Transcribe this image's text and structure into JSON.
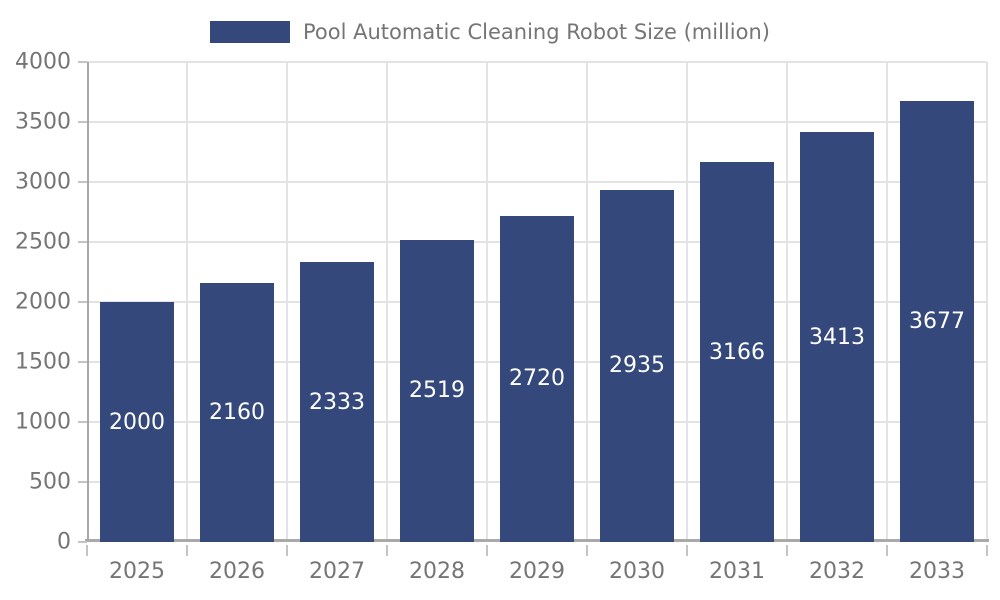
{
  "chart_data": {
    "type": "bar",
    "title": "",
    "legend": "Pool Automatic Cleaning Robot Size (million)",
    "legend_position": "top",
    "categories": [
      "2025",
      "2026",
      "2027",
      "2028",
      "2029",
      "2030",
      "2031",
      "2032",
      "2033"
    ],
    "values": [
      2000,
      2160,
      2333,
      2519,
      2720,
      2935,
      3166,
      3413,
      3677
    ],
    "xlabel": "",
    "ylabel": "",
    "ylim": [
      0,
      4000
    ],
    "ytick_step": 500,
    "yticks": [
      0,
      500,
      1000,
      1500,
      2000,
      2500,
      3000,
      3500,
      4000
    ],
    "grid": true,
    "bar_label_position": "inside-center",
    "colors": {
      "bar": "#34487c",
      "bar_label": "#ffffff",
      "tick_text": "#757575",
      "gridline": "#e3e3e3",
      "axis_line": "#a9a9a9",
      "background": "#ffffff"
    }
  }
}
